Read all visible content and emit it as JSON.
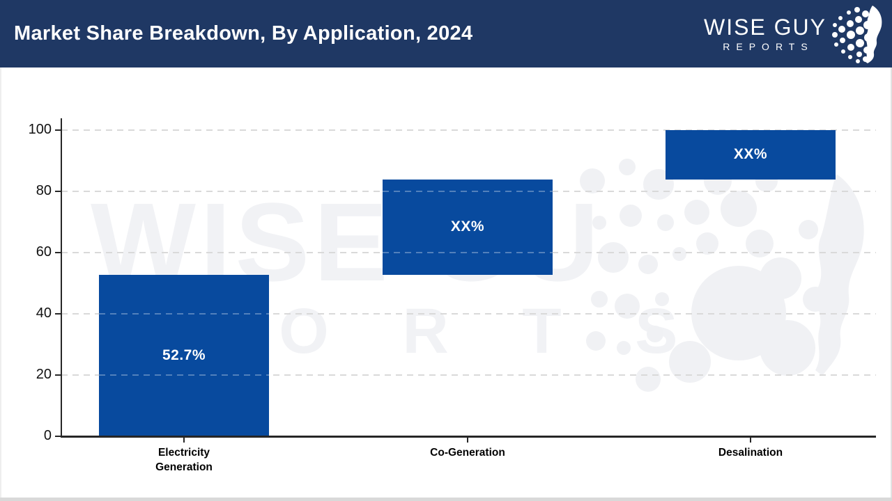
{
  "header": {
    "title": "Market Share Breakdown, By Application, 2024"
  },
  "logo": {
    "wordmark": "WISE GUY",
    "subtitle": "REPORTS"
  },
  "watermark": {
    "line1": "WISE GU",
    "line2": "P O R T S"
  },
  "chart_data": {
    "type": "bar",
    "subtype": "stacked-percentage-breakdown (floating segments)",
    "title": "Market Share Breakdown, By Application, 2024",
    "categories": [
      "Electricity\nGeneration",
      "Co-Generation",
      "Desalination"
    ],
    "segments": [
      {
        "category": "Electricity\nGeneration",
        "label": "52.7%",
        "start": 0,
        "end": 52.7
      },
      {
        "category": "Co-Generation",
        "label": "XX%",
        "start": 52.7,
        "end": 83.9
      },
      {
        "category": "Desalination",
        "label": "XX%",
        "start": 83.9,
        "end": 100
      }
    ],
    "ylim": [
      0,
      100
    ],
    "yticks": [
      0,
      20,
      40,
      60,
      80,
      100
    ],
    "grid": "horizontal-dashed",
    "legend": "none",
    "bar_color": "#084a9e"
  },
  "colors": {
    "header_bg": "#1f3864",
    "bar": "#084a9e",
    "axis": "#262626",
    "grid": "#d9d9d9",
    "title_text": "#ffffff",
    "bar_label_text": "#ffffff",
    "watermark": "#f1f2f5"
  }
}
